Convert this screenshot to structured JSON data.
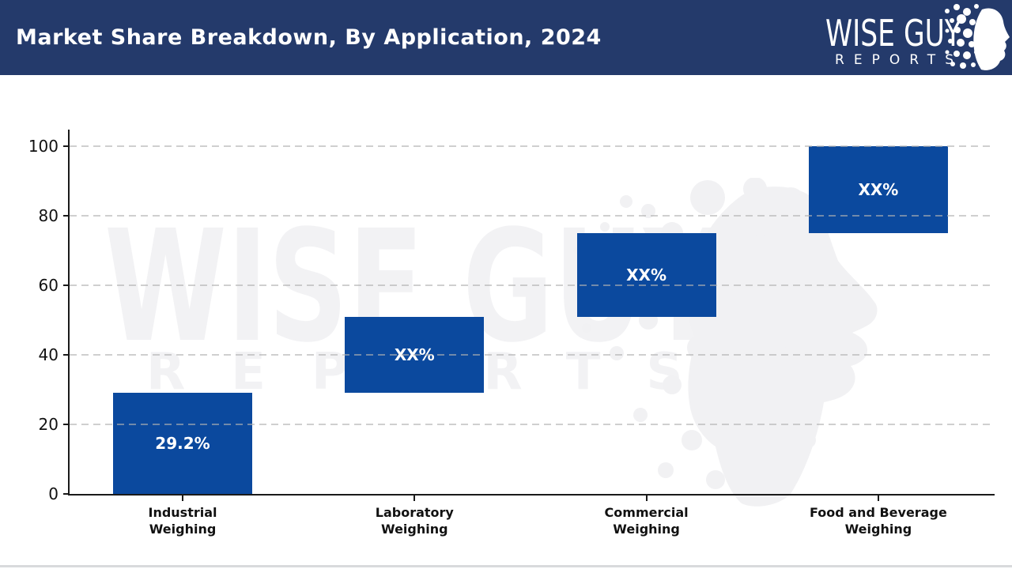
{
  "header": {
    "title": "Market Share Breakdown, By Application, 2024",
    "bg_color": "#243a6b",
    "logo": {
      "name": "WISE GUY",
      "sub": "REPORTS"
    }
  },
  "watermark": {
    "name": "WISE GUY",
    "sub": "REPORTS"
  },
  "chart_data": {
    "type": "bar",
    "subtype": "waterfall-floating-segments",
    "title": "Market Share Breakdown, By Application, 2024",
    "categories": [
      [
        "Industrial",
        "Weighing"
      ],
      [
        "Laboratory",
        "Weighing"
      ],
      [
        "Commercial",
        "Weighing"
      ],
      [
        "Food and Beverage",
        "Weighing"
      ]
    ],
    "segments": [
      {
        "start": 0,
        "end": 29.2,
        "label": "29.2%"
      },
      {
        "start": 29.2,
        "end": 51,
        "label": "XX%"
      },
      {
        "start": 51,
        "end": 75,
        "label": "XX%"
      },
      {
        "start": 75,
        "end": 100,
        "label": "XX%"
      }
    ],
    "ylim": [
      0,
      100
    ],
    "yticks": [
      0,
      20,
      40,
      60,
      80,
      100
    ],
    "bar_color": "#0b499e",
    "value_label_color": "#ffffff",
    "grid": "dashed-horizontal",
    "legend": "none",
    "xlabel": "",
    "ylabel": ""
  }
}
